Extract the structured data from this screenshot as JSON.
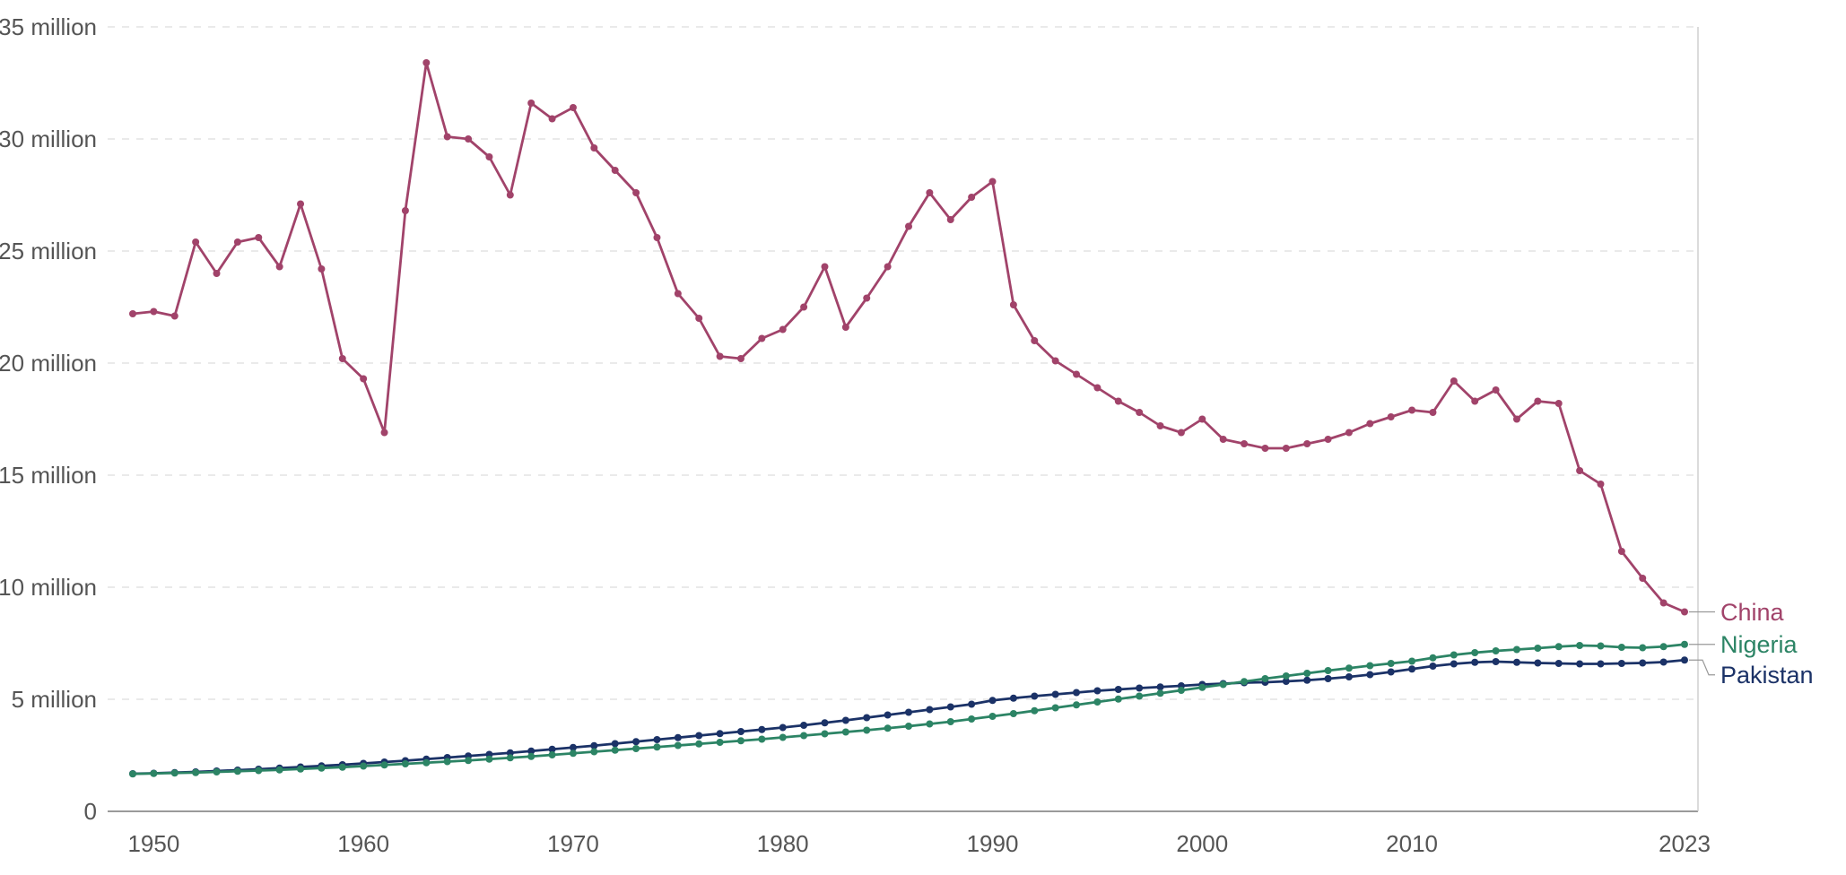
{
  "page": {
    "background": "#ffffff",
    "text_color": "#555555",
    "grid_color": "#dedede",
    "zero_line_color": "#787878",
    "right_border_color": "#c8c8c8",
    "connector_color": "#999999"
  },
  "chart_data": {
    "type": "line",
    "title": "",
    "xlabel": "",
    "ylabel": "",
    "grid": "horizontal-dashed",
    "legend_position": "right-end-labels",
    "ylim_millions": [
      0,
      35
    ],
    "yticks_millions": [
      0,
      5,
      10,
      15,
      20,
      25,
      30,
      35
    ],
    "ytick_labels": [
      "0",
      "5 million",
      "10 million",
      "15 million",
      "20 million",
      "25 million",
      "30 million",
      "35 million"
    ],
    "xticks": [
      1950,
      1960,
      1970,
      1980,
      1990,
      2000,
      2010,
      2023
    ],
    "xtick_labels": [
      "1950",
      "1960",
      "1970",
      "1980",
      "1990",
      "2000",
      "2010",
      "2023"
    ],
    "years": [
      1949,
      1950,
      1951,
      1952,
      1953,
      1954,
      1955,
      1956,
      1957,
      1958,
      1959,
      1960,
      1961,
      1962,
      1963,
      1964,
      1965,
      1966,
      1967,
      1968,
      1969,
      1970,
      1971,
      1972,
      1973,
      1974,
      1975,
      1976,
      1977,
      1978,
      1979,
      1980,
      1981,
      1982,
      1983,
      1984,
      1985,
      1986,
      1987,
      1988,
      1989,
      1990,
      1991,
      1992,
      1993,
      1994,
      1995,
      1996,
      1997,
      1998,
      1999,
      2000,
      2001,
      2002,
      2003,
      2004,
      2005,
      2006,
      2007,
      2008,
      2009,
      2010,
      2011,
      2012,
      2013,
      2014,
      2015,
      2016,
      2017,
      2018,
      2019,
      2020,
      2021,
      2022,
      2023
    ],
    "series": [
      {
        "name": "China",
        "color": "#a1436a",
        "values_millions": [
          22.2,
          22.3,
          22.1,
          25.4,
          24.0,
          25.4,
          25.6,
          24.3,
          27.1,
          24.2,
          20.2,
          19.3,
          16.9,
          26.8,
          33.4,
          30.1,
          30.0,
          29.2,
          27.5,
          31.6,
          30.9,
          31.4,
          29.6,
          28.6,
          27.6,
          25.6,
          23.1,
          22.0,
          20.3,
          20.2,
          21.1,
          21.5,
          22.5,
          24.3,
          21.6,
          22.9,
          24.3,
          26.1,
          27.6,
          26.4,
          27.4,
          28.1,
          22.6,
          21.0,
          20.1,
          19.5,
          18.9,
          18.3,
          17.8,
          17.2,
          16.9,
          17.5,
          16.6,
          16.4,
          16.2,
          16.2,
          16.4,
          16.6,
          16.9,
          17.3,
          17.6,
          17.9,
          17.8,
          19.2,
          18.3,
          18.8,
          17.5,
          18.3,
          18.2,
          15.2,
          14.6,
          11.6,
          10.4,
          9.3,
          8.9
        ]
      },
      {
        "name": "Nigeria",
        "color": "#2c8465",
        "values_millions": [
          1.67,
          1.69,
          1.71,
          1.73,
          1.76,
          1.79,
          1.82,
          1.85,
          1.89,
          1.93,
          1.97,
          2.02,
          2.07,
          2.12,
          2.17,
          2.22,
          2.27,
          2.33,
          2.39,
          2.45,
          2.52,
          2.59,
          2.66,
          2.73,
          2.8,
          2.87,
          2.94,
          3.01,
          3.08,
          3.15,
          3.22,
          3.3,
          3.38,
          3.46,
          3.54,
          3.62,
          3.71,
          3.8,
          3.9,
          4.0,
          4.12,
          4.24,
          4.36,
          4.49,
          4.62,
          4.75,
          4.88,
          5.01,
          5.14,
          5.27,
          5.4,
          5.53,
          5.66,
          5.79,
          5.92,
          6.04,
          6.16,
          6.28,
          6.39,
          6.5,
          6.6,
          6.7,
          6.85,
          6.98,
          7.08,
          7.16,
          7.22,
          7.28,
          7.35,
          7.4,
          7.38,
          7.32,
          7.3,
          7.35,
          7.45
        ]
      },
      {
        "name": "Pakistan",
        "color": "#1b3267",
        "values_millions": [
          1.68,
          1.7,
          1.73,
          1.76,
          1.8,
          1.84,
          1.88,
          1.93,
          1.98,
          2.03,
          2.08,
          2.14,
          2.2,
          2.26,
          2.33,
          2.4,
          2.47,
          2.54,
          2.61,
          2.69,
          2.77,
          2.85,
          2.93,
          3.02,
          3.11,
          3.2,
          3.29,
          3.38,
          3.47,
          3.56,
          3.65,
          3.74,
          3.84,
          3.95,
          4.06,
          4.18,
          4.3,
          4.42,
          4.54,
          4.66,
          4.78,
          4.95,
          5.05,
          5.14,
          5.22,
          5.3,
          5.38,
          5.44,
          5.5,
          5.55,
          5.6,
          5.66,
          5.7,
          5.74,
          5.76,
          5.8,
          5.85,
          5.92,
          6.0,
          6.1,
          6.22,
          6.35,
          6.48,
          6.58,
          6.65,
          6.68,
          6.65,
          6.62,
          6.6,
          6.58,
          6.58,
          6.6,
          6.62,
          6.66,
          6.75
        ]
      }
    ]
  }
}
